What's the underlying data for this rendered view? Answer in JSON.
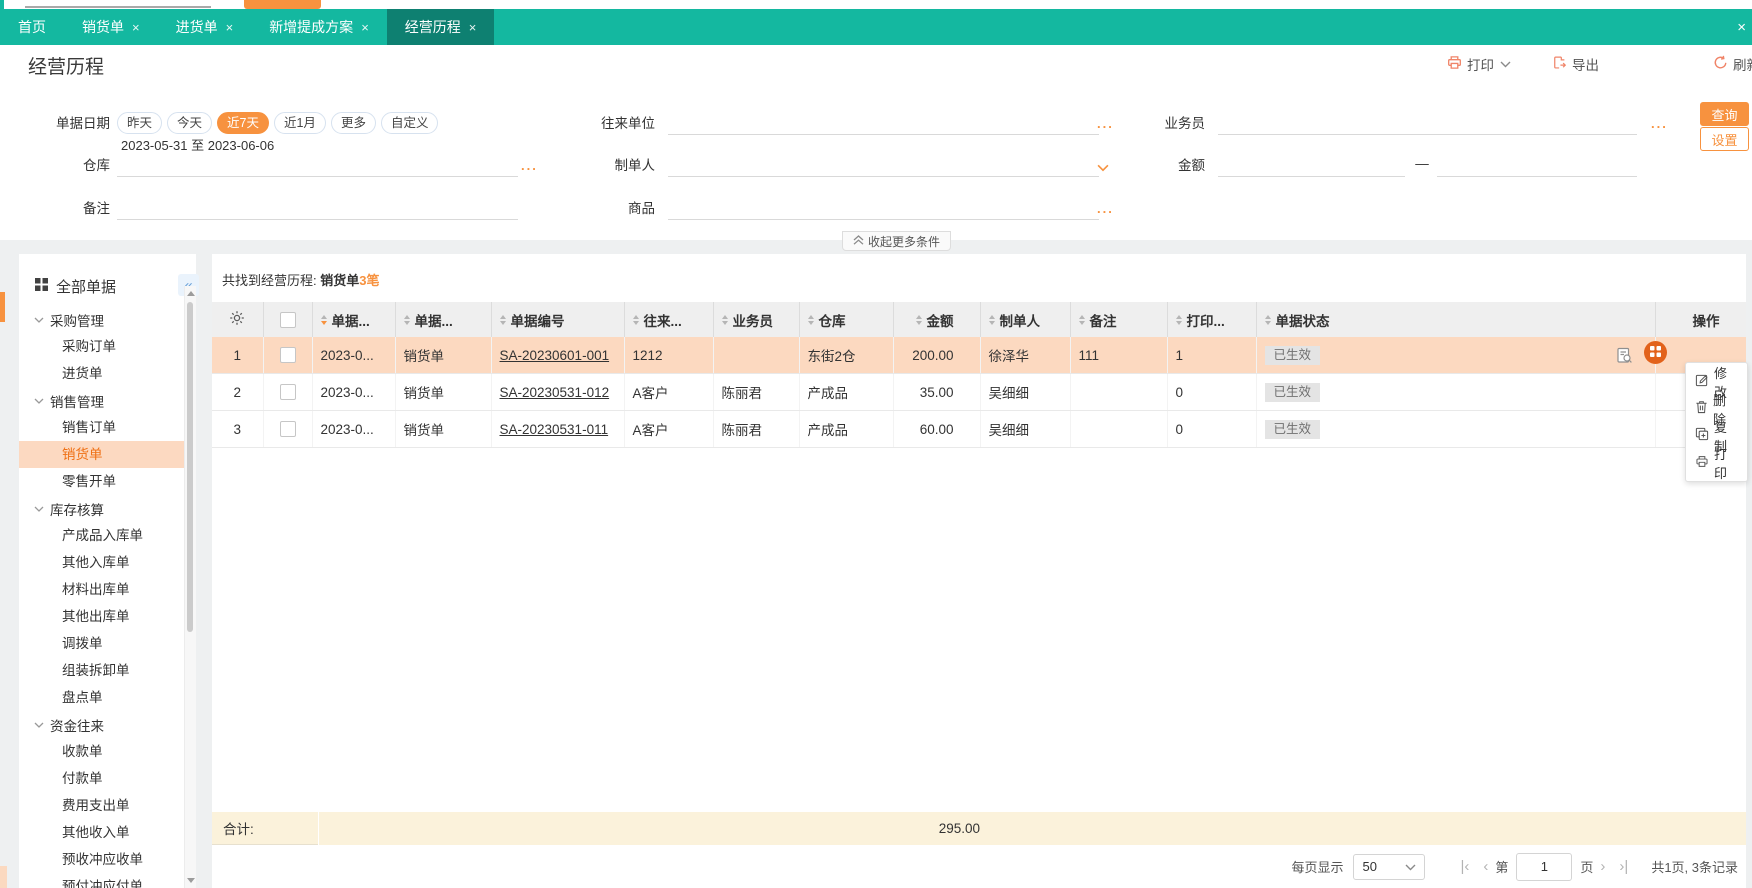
{
  "page": {
    "top_close": "×"
  },
  "tabs": {
    "close_glyph": "×",
    "items": [
      {
        "label": "首页",
        "closable": false,
        "active": false
      },
      {
        "label": "销货单",
        "closable": true,
        "active": false
      },
      {
        "label": "进货单",
        "closable": true,
        "active": false
      },
      {
        "label": "新增提成方案",
        "closable": true,
        "active": false
      },
      {
        "label": "经营历程",
        "closable": true,
        "active": true
      }
    ]
  },
  "header": {
    "title": "经营历程",
    "actions": {
      "print": "打印",
      "export": "导出",
      "refresh": "刷新"
    }
  },
  "filters": {
    "labels": {
      "date": "单据日期",
      "partner": "往来单位",
      "salesman": "业务员",
      "warehouse": "仓库",
      "creator": "制单人",
      "amount": "金额",
      "remark": "备注",
      "goods": "商品"
    },
    "date_pills": [
      "昨天",
      "今天",
      "近7天",
      "近1月",
      "更多",
      "自定义"
    ],
    "date_pill_active": "近7天",
    "date_range": "2023-05-31 至 2023-06-06",
    "amount_dash": "—",
    "more_glyph": "...",
    "collapse_more": "收起更多条件",
    "query": "查询",
    "settings": "设置"
  },
  "sidebar": {
    "title": "全部单据",
    "collapse_glyph": "«",
    "groups": [
      {
        "label": "采购管理",
        "items": [
          "采购订单",
          "进货单"
        ]
      },
      {
        "label": "销售管理",
        "items": [
          "销售订单",
          "销货单",
          "零售开单"
        ],
        "active_item": "销货单"
      },
      {
        "label": "库存核算",
        "items": [
          "产成品入库单",
          "其他入库单",
          "材料出库单",
          "其他出库单",
          "调拨单",
          "组装拆卸单",
          "盘点单"
        ]
      },
      {
        "label": "资金往来",
        "items": [
          "收款单",
          "付款单",
          "费用支出单",
          "其他收入单",
          "预收冲应收单",
          "预付冲应付单"
        ]
      }
    ]
  },
  "summary": {
    "prefix": "共找到经营历程: ",
    "doc_type": "销货单",
    "count": "3",
    "unit": "笔"
  },
  "table": {
    "columns": [
      "单据...",
      "单据...",
      "单据编号",
      "往来...",
      "业务员",
      "仓库",
      "金额",
      "制单人",
      "备注",
      "打印...",
      "单据状态"
    ],
    "operation_column": "操作",
    "rows": [
      {
        "index": "1",
        "date": "2023-0...",
        "type": "销货单",
        "code": "SA-20230601-001",
        "partner": "1212",
        "salesman": "",
        "warehouse": "东街2仓",
        "amount": "200.00",
        "creator": "徐泽华",
        "remark": "111",
        "print_count": "1",
        "status": "已生效",
        "selected": true
      },
      {
        "index": "2",
        "date": "2023-0...",
        "type": "销货单",
        "code": "SA-20230531-012",
        "partner": "A客户",
        "salesman": "陈丽君",
        "warehouse": "产成品",
        "amount": "35.00",
        "creator": "吴细细",
        "remark": "",
        "print_count": "0",
        "status": "已生效",
        "selected": false
      },
      {
        "index": "3",
        "date": "2023-0...",
        "type": "销货单",
        "code": "SA-20230531-011",
        "partner": "A客户",
        "salesman": "陈丽君",
        "warehouse": "产成品",
        "amount": "60.00",
        "creator": "吴细细",
        "remark": "",
        "print_count": "0",
        "status": "已生效",
        "selected": false
      }
    ]
  },
  "action_menu": {
    "items": [
      "修改",
      "删除",
      "复制",
      "打印"
    ]
  },
  "totals": {
    "label": "合计:",
    "amount": "295.00"
  },
  "pagination": {
    "per_page_label": "每页显示",
    "per_page_value": "50",
    "page_prefix": "第",
    "page_value": "1",
    "page_suffix": "页",
    "summary": "共1页, 3条记录",
    "glyphs": {
      "first": "|‹",
      "prev": "‹",
      "next": "›",
      "last": "›|"
    }
  },
  "colors": {
    "accent_orange": "#f7923f",
    "deep_orange": "#e2621b",
    "teal": "#14b8a0",
    "teal_dark": "#0e8071",
    "row_highlight": "#fcd9c0",
    "sidebar_active_bg": "#fcd9c1",
    "totals_bg": "#fbf2db",
    "badge_bg": "#e4e4e4"
  }
}
